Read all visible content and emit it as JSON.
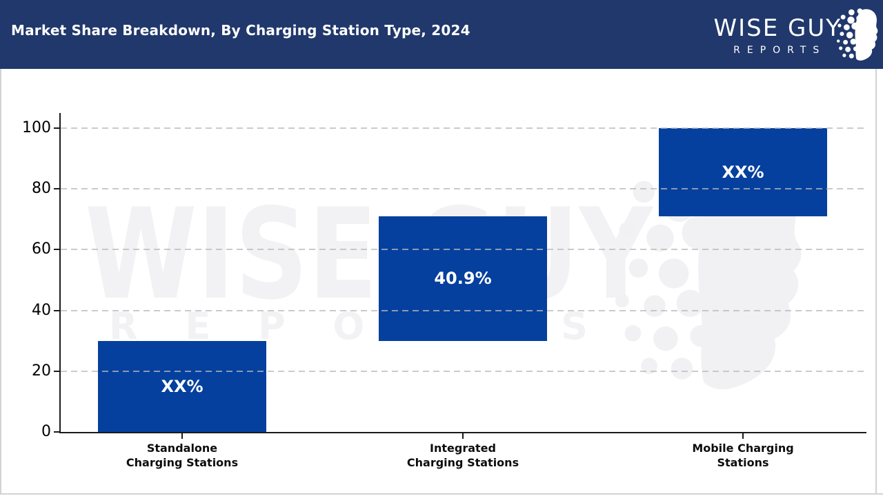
{
  "header": {
    "title": "Market Share Breakdown, By Charging Station Type, 2024",
    "logo": {
      "wise_guy": "WISE GUY",
      "reports": "REPORTS"
    }
  },
  "watermark": {
    "line1": "WISE GUY",
    "line2": "R E P O R T S"
  },
  "chart_data": {
    "type": "bar",
    "subtype": "floating-waterfall-segments",
    "title": "Market Share Breakdown, By Charging Station Type, 2024",
    "categories": [
      "Standalone\nCharging Stations",
      "Integrated\nCharging Stations",
      "Mobile Charging\nStations"
    ],
    "segments": [
      {
        "category": "Standalone Charging Stations",
        "start": 0,
        "end": 30,
        "value_label": "XX%"
      },
      {
        "category": "Integrated Charging Stations",
        "start": 30,
        "end": 70.9,
        "value_label": "40.9%"
      },
      {
        "category": "Mobile Charging Stations",
        "start": 71,
        "end": 100,
        "value_label": "XX%"
      }
    ],
    "yticks": [
      0,
      20,
      40,
      60,
      80,
      100
    ],
    "ylim": [
      0,
      105
    ],
    "xlabel": "",
    "ylabel": "",
    "legend": "none",
    "grid": "horizontal-dashed",
    "colors": {
      "bar": "#05409E",
      "bar_label": "#FFFFFF",
      "axis": "#1A1A1A",
      "gridline": "#D9D9D9",
      "header_bg": "#20386B",
      "header_text": "#FFFFFF",
      "watermark": "#F2F2F4"
    }
  }
}
